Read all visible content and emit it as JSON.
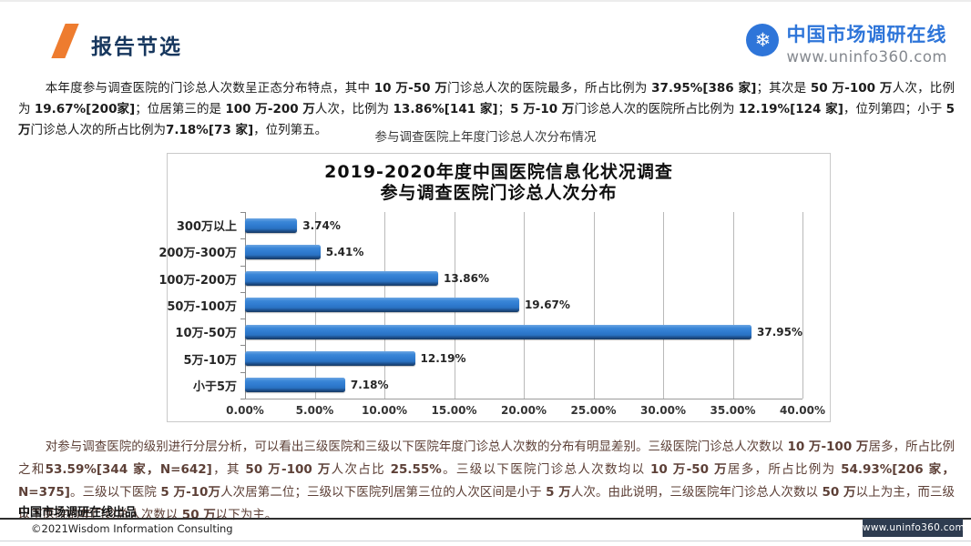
{
  "header": {
    "title": "报告节选",
    "brand_name": "中国市场调研在线",
    "brand_url": "www.uninfo360.com"
  },
  "colors": {
    "brand_blue": "#2e75d9",
    "accent_orange": "#ee7c2f",
    "title_navy": "#17375e",
    "bar_blue": "#2f7bd0",
    "paragraph2_brown": "#5d4037",
    "badge_navy": "#2e3c50"
  },
  "paragraphs": {
    "p1": [
      {
        "t": "本年度参与调查医院的门诊总人次数呈正态分布特点，其中 ",
        "b": false
      },
      {
        "t": "10 万-50 万",
        "b": true
      },
      {
        "t": "门诊总人次的医院最多，所占比例为 ",
        "b": false
      },
      {
        "t": "37.95%[386 家]",
        "b": true
      },
      {
        "t": "；其次是 ",
        "b": false
      },
      {
        "t": "50 万-100 万",
        "b": true
      },
      {
        "t": "人次，比例为 ",
        "b": false
      },
      {
        "t": "19.67%[200家]",
        "b": true
      },
      {
        "t": "；位居第三的是 ",
        "b": false
      },
      {
        "t": "100 万-200 万",
        "b": true
      },
      {
        "t": "人次，比例为 ",
        "b": false
      },
      {
        "t": "13.86%[141 家]",
        "b": true
      },
      {
        "t": "；",
        "b": false
      },
      {
        "t": "5 万-10 万",
        "b": true
      },
      {
        "t": "门诊总人次的医院所占比例为 ",
        "b": false
      },
      {
        "t": "12.19%[124 家]",
        "b": true
      },
      {
        "t": "，位列第四；小于 ",
        "b": false
      },
      {
        "t": "5 万",
        "b": true
      },
      {
        "t": "门诊总人次的所占比例为",
        "b": false
      },
      {
        "t": "7.18%[73 家]",
        "b": true
      },
      {
        "t": "，位列第五。",
        "b": false
      }
    ],
    "caption": "参与调查医院上年度门诊总人次分布情况",
    "p2": [
      {
        "t": "对参与调查医院的级别进行分层分析，可以看出三级医院和三级以下医院年度门诊总人次数的分布有明显差别。三级医院门诊总人次数以 ",
        "b": false
      },
      {
        "t": "10 万-100 万",
        "b": true
      },
      {
        "t": "居多，所占比例之和",
        "b": false
      },
      {
        "t": "53.59%[344 家，N=642]",
        "b": true
      },
      {
        "t": "，其 ",
        "b": false
      },
      {
        "t": "50 万-100 万",
        "b": true
      },
      {
        "t": "人次占比 ",
        "b": false
      },
      {
        "t": "25.55%",
        "b": true
      },
      {
        "t": "。三级以下医院门诊总人次数均以 ",
        "b": false
      },
      {
        "t": "10 万-50 万",
        "b": true
      },
      {
        "t": "居多，所占比例为 ",
        "b": false
      },
      {
        "t": "54.93%[206 家，N=375]",
        "b": true
      },
      {
        "t": "。三级以下医院 ",
        "b": false
      },
      {
        "t": "5 万-10万",
        "b": true
      },
      {
        "t": "人次居第二位；三级以下医院列居第三位的人次区间是小于 ",
        "b": false
      },
      {
        "t": "5 万",
        "b": true
      },
      {
        "t": "人次。由此说明，三级医院年门诊总人次数以 ",
        "b": false
      },
      {
        "t": "50 万",
        "b": true
      },
      {
        "t": "以上为主，而三级以下医院的年门诊总人次数以 ",
        "b": false
      },
      {
        "t": "50 万",
        "b": true
      },
      {
        "t": "以下为主。",
        "b": false
      }
    ]
  },
  "chart_data": {
    "type": "bar",
    "orientation": "horizontal",
    "title_line1": "2019-2020年度中国医院信息化状况调查",
    "title_line2": "参与调查医院门诊总人次分布",
    "categories": [
      "300万以上",
      "200万-300万",
      "100万-200万",
      "50万-100万",
      "10万-50万",
      "5万-10万",
      "小于5万"
    ],
    "values": [
      3.74,
      5.41,
      13.86,
      19.67,
      37.95,
      12.19,
      7.18
    ],
    "labels": [
      "3.74%",
      "5.41%",
      "13.86%",
      "19.67%",
      "37.95%",
      "12.19%",
      "7.18%"
    ],
    "xlim": [
      0,
      40
    ],
    "x_ticks": [
      "0.00%",
      "5.00%",
      "10.00%",
      "15.00%",
      "20.00%",
      "25.00%",
      "30.00%",
      "35.00%",
      "40.00%"
    ],
    "grid": true,
    "legend": "none",
    "bar_color": "#2f7bd0"
  },
  "footer": {
    "produced_by": "中国市场调研在线出品",
    "copyright": "©2021Wisdom Information Consulting",
    "site_badge": "www.uninfo360.com"
  }
}
